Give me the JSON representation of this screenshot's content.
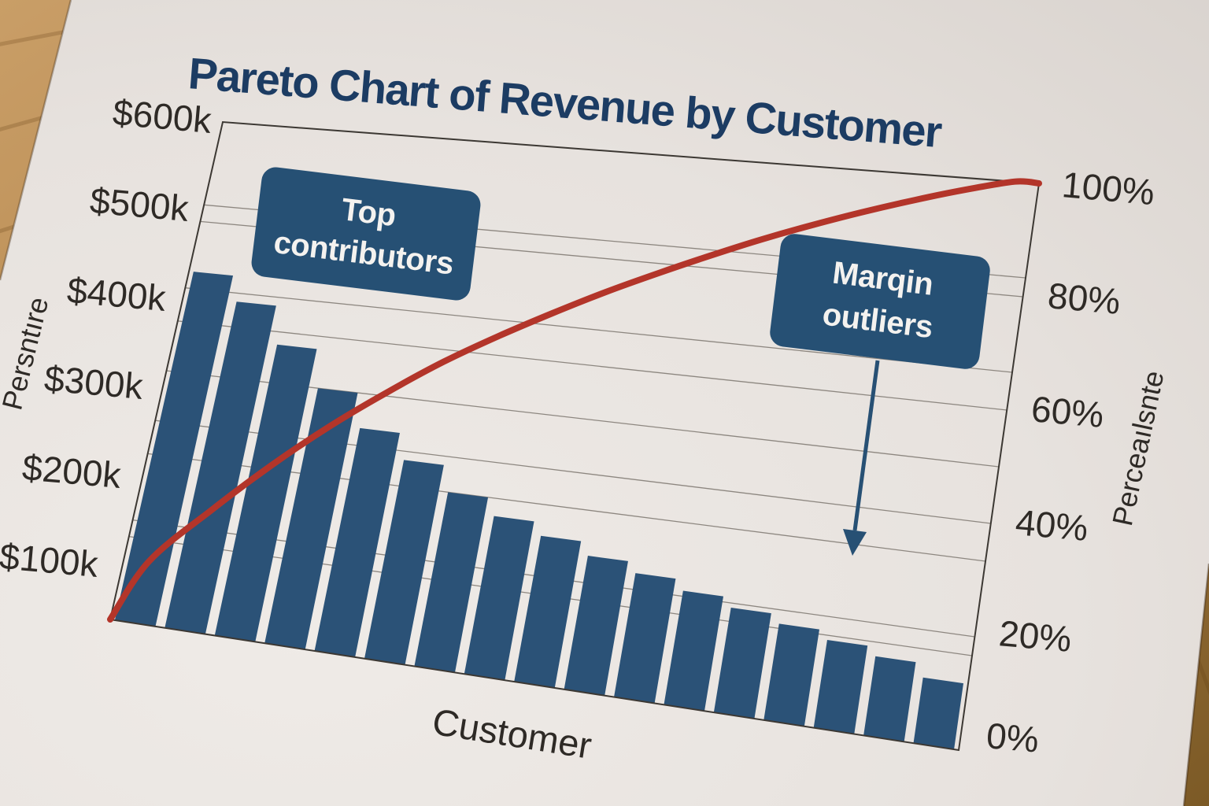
{
  "title": "Pareto Chart of Revenue by Customer",
  "chart_data": {
    "type": "bar",
    "subtype": "pareto",
    "title": "Pareto Chart of Revenue by Customer",
    "xlabel": "Customer",
    "ylabel_left": "Persntıre",
    "ylabel_right": "Perceaılsnte",
    "ylim_left_dollars_k": [
      0,
      600
    ],
    "ylim_right_percent": [
      0,
      100
    ],
    "n_bars": 17,
    "categories": null,
    "values_k": [
      420,
      390,
      345,
      300,
      260,
      230,
      200,
      180,
      165,
      150,
      138,
      126,
      115,
      105,
      95,
      85,
      70
    ],
    "cumulative_percent": [
      12.4,
      24.0,
      34.2,
      43.1,
      50.8,
      57.7,
      63.6,
      68.9,
      73.8,
      78.2,
      82.3,
      86.1,
      89.5,
      92.6,
      95.4,
      97.9,
      100
    ],
    "grid": true,
    "legend": null,
    "left_ticks": [
      {
        "label": "$600k",
        "value": 600
      },
      {
        "label": "$500k",
        "value": 500
      },
      {
        "label": "$400k",
        "value": 400
      },
      {
        "label": "$300k",
        "value": 300
      },
      {
        "label": "$200k",
        "value": 200
      },
      {
        "label": "$100k",
        "value": 100
      }
    ],
    "right_ticks": [
      {
        "label": "100%",
        "value": 100
      },
      {
        "label": "80%",
        "value": 80
      },
      {
        "label": "60%",
        "value": 60
      },
      {
        "label": "40%",
        "value": 40
      },
      {
        "label": "20%",
        "value": 20
      },
      {
        "label": "0%",
        "value": 0
      }
    ],
    "colors": {
      "bar": "#2b5277",
      "cumulative_line": "#b3352a",
      "callout_bg": "#265074",
      "title_ink": "#1c3c63",
      "label_ink": "#2e2a26",
      "paper": "#e9e4e0",
      "wood": "#b08749",
      "gridline": "#8d8780"
    },
    "annotations": [
      {
        "line1": "Top",
        "line2": "contributors",
        "arrow": false
      },
      {
        "line1": "Marqin",
        "line2": "outliers",
        "arrow": true
      }
    ]
  }
}
